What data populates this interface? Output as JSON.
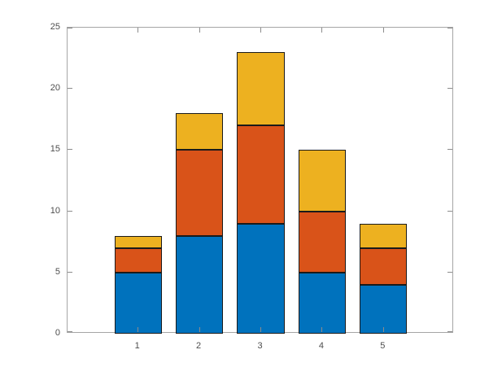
{
  "chart_data": {
    "type": "bar",
    "stacked": true,
    "title": "",
    "xlabel": "",
    "ylabel": "",
    "categories": [
      "1",
      "2",
      "3",
      "4",
      "5"
    ],
    "series": [
      {
        "name": "blue",
        "color": "#0072BD",
        "values": [
          5,
          8,
          9,
          5,
          4
        ]
      },
      {
        "name": "orange",
        "color": "#D95319",
        "values": [
          2,
          7,
          8,
          5,
          3
        ]
      },
      {
        "name": "yellow",
        "color": "#EDB120",
        "values": [
          1,
          3,
          6,
          5,
          2
        ]
      }
    ],
    "stack_totals": [
      8,
      18,
      23,
      15,
      9
    ],
    "yticks": [
      0,
      5,
      10,
      15,
      20,
      25
    ],
    "ylim": [
      0,
      25
    ],
    "xlim": [
      -0.15,
      6.15
    ],
    "bar_width": 0.77,
    "legend": "none",
    "grid": false,
    "box": true,
    "tick_direction": "in",
    "colors": {
      "bar_edge": "#1a1a1a",
      "axis_box": "#a6a6a6",
      "tick_mark": "#8c8c8c",
      "tick_label": "#4d4d4d",
      "background": "#ffffff"
    }
  }
}
